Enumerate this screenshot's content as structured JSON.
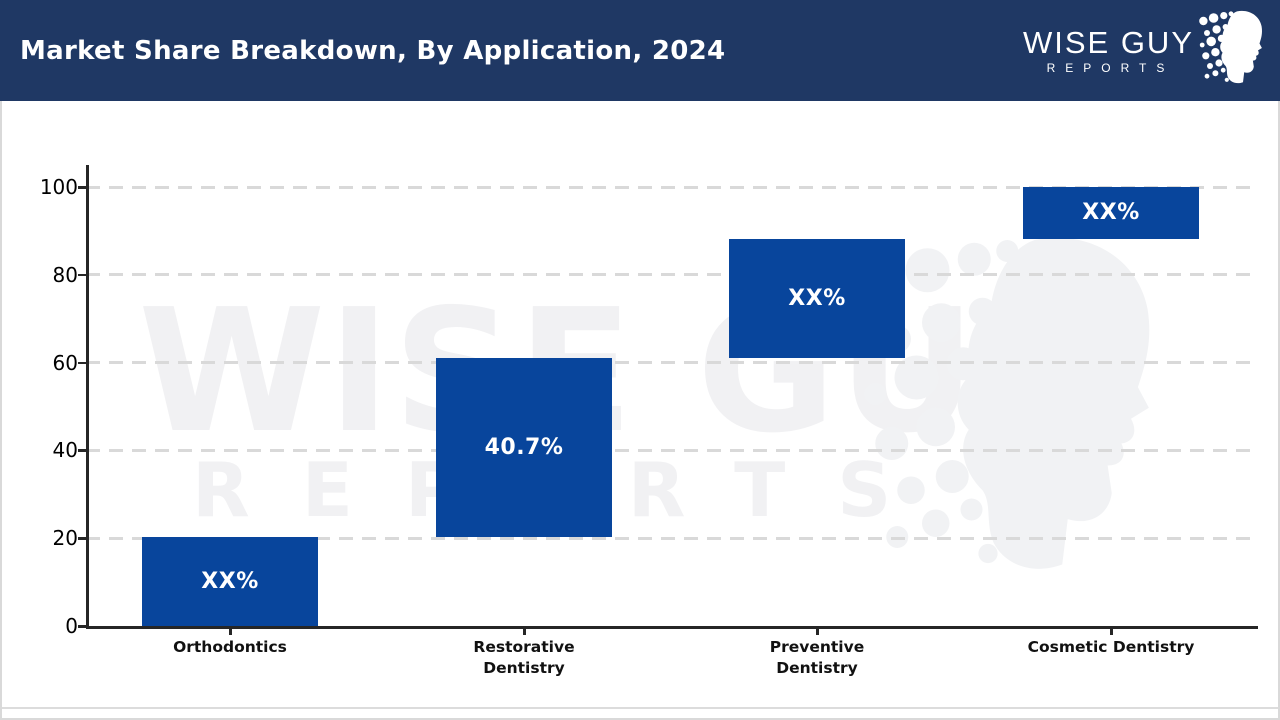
{
  "header": {
    "title": "Market Share Breakdown, By Application, 2024",
    "logo": {
      "name": "WISE GUY",
      "sub": "REPORTS"
    }
  },
  "watermark": {
    "line1": "WISE GUY",
    "line2": "REPORTS"
  },
  "colors": {
    "header_bg": "#1f3864",
    "bar": "#08459c",
    "axis": "#262626",
    "grid": "#d9d9d9",
    "watermark": "#f1f1f3"
  },
  "chart_data": {
    "type": "bar",
    "subtype": "waterfall",
    "title": "Market Share Breakdown, By Application, 2024",
    "categories": [
      "Orthodontics",
      "Restorative\nDentistry",
      "Preventive\nDentistry",
      "Cosmetic Dentistry"
    ],
    "series": [
      {
        "name": "Market share (%)",
        "segments": [
          {
            "category": "Orthodontics",
            "start": 0,
            "end": 20.3,
            "value_label": "XX%"
          },
          {
            "category": "Restorative Dentistry",
            "start": 20.3,
            "end": 61,
            "value_label": "40.7%"
          },
          {
            "category": "Preventive Dentistry",
            "start": 61,
            "end": 88.2,
            "value_label": "XX%"
          },
          {
            "category": "Cosmetic Dentistry",
            "start": 88.2,
            "end": 100,
            "value_label": "XX%"
          }
        ]
      }
    ],
    "ylim": [
      0,
      100
    ],
    "yticks": [
      0,
      20,
      40,
      60,
      80,
      100
    ],
    "grid": {
      "horizontal": true,
      "style": "dashed"
    },
    "legend": "none",
    "bar_label_color": "#ffffff"
  }
}
